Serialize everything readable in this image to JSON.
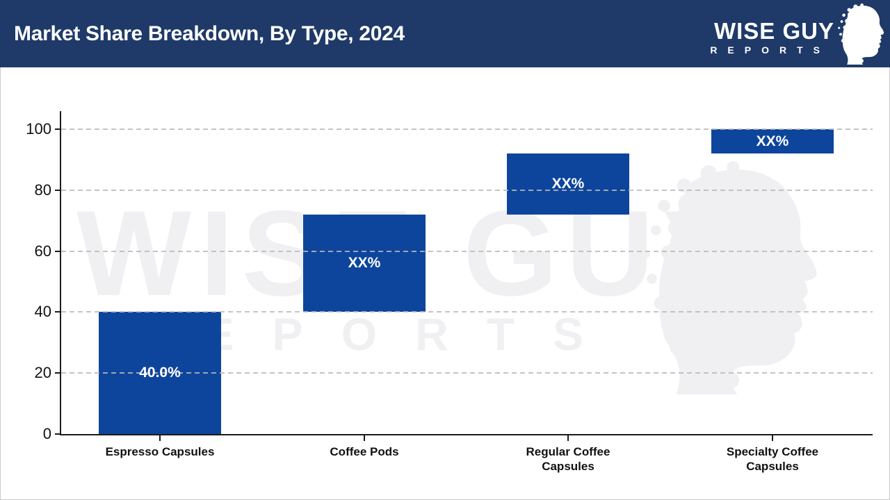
{
  "header": {
    "title": "Market Share Breakdown, By Type, 2024",
    "logo": {
      "wordmark": "WISE GUY",
      "subtitle": "REPORTS"
    }
  },
  "watermark": {
    "line1": "WISE GUY",
    "line2": "REPORTS"
  },
  "colors": {
    "header_bg": "#1f3a68",
    "bar": "#0d459c",
    "grid": "#bdbdbd",
    "axis": "#1a1a1a",
    "bar_label_text": "#ffffff",
    "watermark": "#f0f0f2",
    "page_border": "#c9c9c9"
  },
  "chart_data": {
    "type": "bar",
    "subtype": "waterfall_breakdown",
    "title": "Market Share Breakdown, By Type, 2024",
    "categories": [
      "Espresso Capsules",
      "Coffee Pods",
      "Regular Coffee Capsules",
      "Specialty Coffee Capsules"
    ],
    "segments": [
      {
        "category": "Espresso Capsules",
        "start": 0,
        "end": 40,
        "value": 40,
        "label": "40.0%"
      },
      {
        "category": "Coffee Pods",
        "start": 40,
        "end": 72,
        "value": 32,
        "label": "XX%"
      },
      {
        "category": "Regular Coffee Capsules",
        "start": 72,
        "end": 92,
        "value": 20,
        "label": "XX%"
      },
      {
        "category": "Specialty Coffee Capsules",
        "start": 92,
        "end": 100,
        "value": 8,
        "label": "XX%"
      }
    ],
    "xlabel": "",
    "ylabel": "",
    "yticks": [
      0,
      20,
      40,
      60,
      80,
      100
    ],
    "ylim": [
      0,
      106
    ],
    "grid": "horizontal_dashed_over_bars",
    "legend": "none",
    "bar_color": "#0d459c"
  }
}
